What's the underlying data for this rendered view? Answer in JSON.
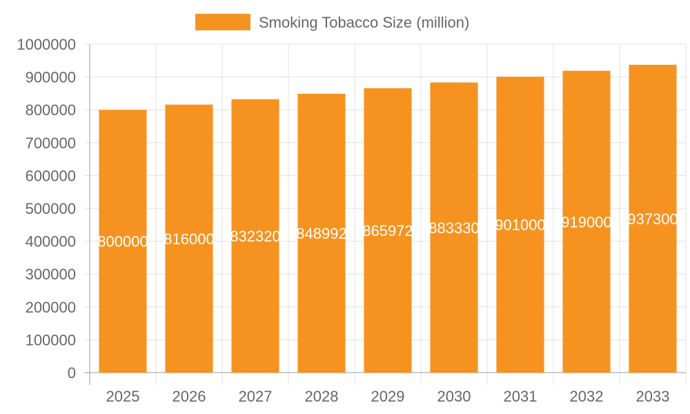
{
  "chart_data": {
    "type": "bar",
    "categories": [
      "2025",
      "2026",
      "2027",
      "2028",
      "2029",
      "2030",
      "2031",
      "2032",
      "2033"
    ],
    "series": [
      {
        "name": "Smoking Tobacco Size (million)",
        "values": [
          800000,
          816000,
          832320,
          848992,
          865972,
          883330,
          901000,
          919000,
          937300
        ]
      }
    ],
    "ylim": [
      0,
      1000000
    ],
    "yticks": [
      "0",
      "100000",
      "200000",
      "300000",
      "400000",
      "500000",
      "600000",
      "700000",
      "800000",
      "900000",
      "1000000"
    ],
    "grid": true,
    "legend_position": "top",
    "colors": {
      "bar": "#F69320",
      "grid": "#e0e0e0",
      "axis": "#bbbbbb",
      "text": "#666666",
      "label": "#ffffff"
    }
  }
}
